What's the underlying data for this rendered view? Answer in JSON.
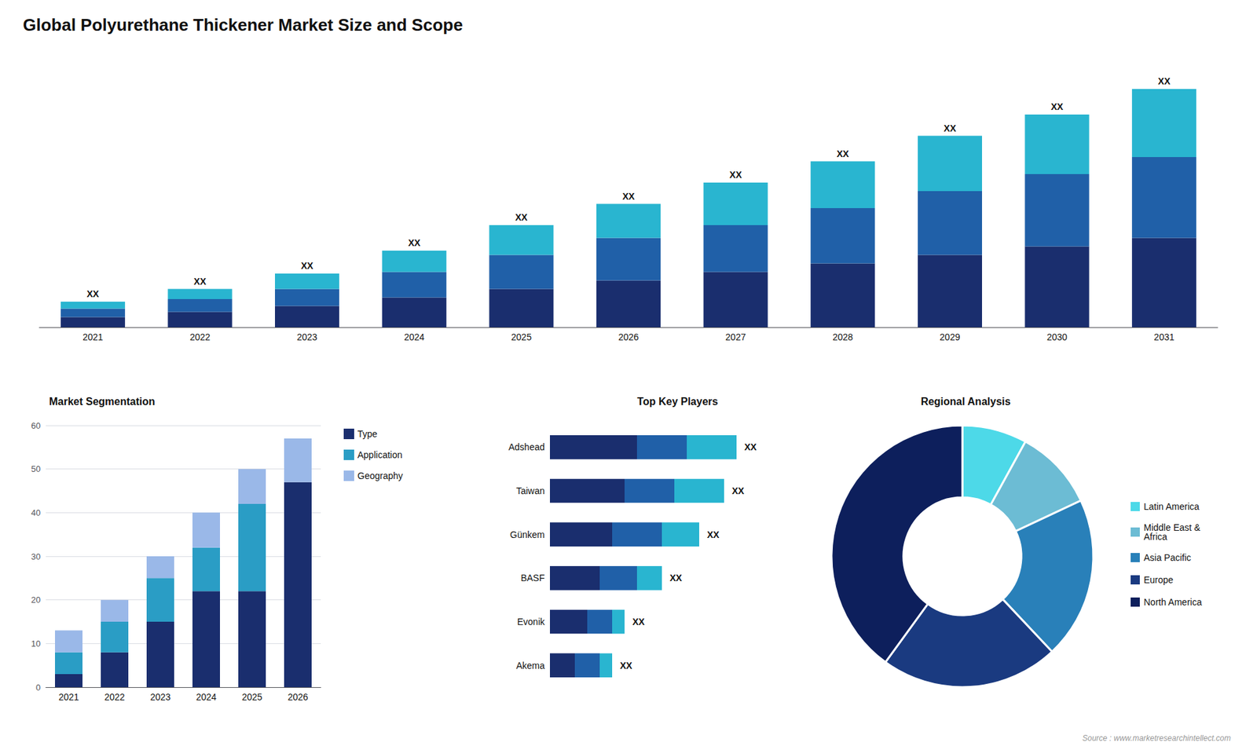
{
  "chart_data": [
    {
      "type": "bar",
      "title": "Global Polyurethane Thickener Market Size and Scope",
      "stacked": true,
      "categories": [
        "2021",
        "2022",
        "2023",
        "2024",
        "2025",
        "2026",
        "2027",
        "2028",
        "2029",
        "2030",
        "2031"
      ],
      "series": [
        {
          "color": "#1a2e6e",
          "values": [
            1.2,
            1.8,
            2.5,
            3.5,
            4.5,
            5.5,
            6.5,
            7.5,
            8.5,
            9.5,
            10.5
          ]
        },
        {
          "color": "#2060a8",
          "values": [
            1.0,
            1.5,
            2.0,
            3.0,
            4.0,
            5.0,
            5.5,
            6.5,
            7.5,
            8.5,
            9.5
          ]
        },
        {
          "color": "#29b5d0",
          "values": [
            0.8,
            1.2,
            1.8,
            2.5,
            3.5,
            4.0,
            5.0,
            5.5,
            6.5,
            7.0,
            8.0
          ]
        }
      ],
      "total_labels": [
        "XX",
        "XX",
        "XX",
        "XX",
        "XX",
        "XX",
        "XX",
        "XX",
        "XX",
        "XX",
        "XX"
      ],
      "ylim": [
        0,
        30
      ],
      "tick_labels": "x",
      "grid": false,
      "annotations": [
        "Source : www.marketresearchintellect.com"
      ]
    },
    {
      "type": "bar",
      "title": "Market Segmentation",
      "stacked": true,
      "categories": [
        "2021",
        "2022",
        "2023",
        "2024",
        "2025",
        "2026"
      ],
      "series": [
        {
          "name": "Type",
          "color": "#1a2e6e",
          "values": [
            3,
            8,
            15,
            22,
            22,
            47
          ]
        },
        {
          "name": "Application",
          "color": "#2a9dc5",
          "values": [
            5,
            7,
            10,
            10,
            20,
            0
          ]
        },
        {
          "name": "Geography",
          "color": "#9ab8e8",
          "values": [
            5,
            5,
            5,
            8,
            8,
            10
          ]
        }
      ],
      "ylim": [
        0,
        60
      ],
      "yticks": [
        0,
        10,
        20,
        30,
        40,
        50,
        60
      ],
      "grid": true,
      "legend": "right"
    },
    {
      "type": "bar",
      "title": "Top Key Players",
      "orientation": "horizontal",
      "stacked": true,
      "categories": [
        "Adshead",
        "Taiwan",
        "Günkem",
        "BASF",
        "Evonik",
        "Akema"
      ],
      "series": [
        {
          "color": "#1a2e6e",
          "values": [
            7,
            6,
            5,
            4,
            3,
            2
          ]
        },
        {
          "color": "#2060a8",
          "values": [
            4,
            4,
            4,
            3,
            2,
            2
          ]
        },
        {
          "color": "#29b5d0",
          "values": [
            4,
            4,
            3,
            2,
            1,
            1
          ]
        }
      ],
      "total_labels": [
        "XX",
        "XX",
        "XX",
        "XX",
        "XX",
        "XX"
      ],
      "xlim": [
        0,
        20
      ],
      "tick_labels": "y",
      "grid": false
    },
    {
      "type": "pie",
      "title": "Regional Analysis",
      "categories": [
        "Latin America",
        "Middle East &\nAfrica",
        "Asia Pacific",
        "Europe",
        "North America"
      ],
      "values": [
        8,
        10,
        20,
        22,
        40
      ],
      "colors": [
        "#4dd9e8",
        "#6cbcd4",
        "#2980b9",
        "#1a3a80",
        "#0d1f5c"
      ],
      "legend": "right"
    }
  ]
}
